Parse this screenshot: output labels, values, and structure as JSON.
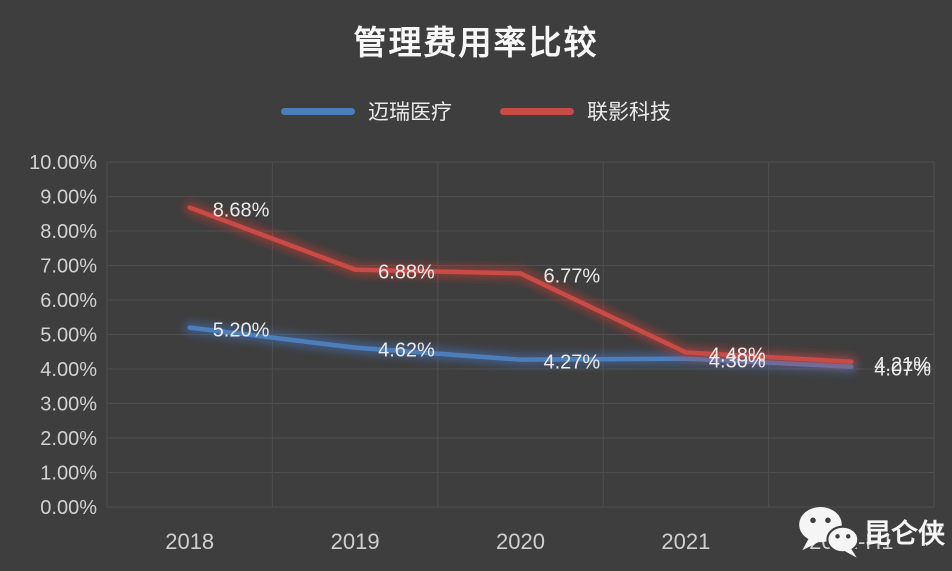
{
  "chart_data": {
    "type": "line",
    "title": "管理费用率比较",
    "categories": [
      "2018",
      "2019",
      "2020",
      "2021",
      "2022-H1"
    ],
    "series": [
      {
        "name": "迈瑞医疗",
        "color": "#4d7ebc",
        "glow_color": "rgba(70,120,200,0.55)",
        "values": [
          5.2,
          4.62,
          4.27,
          4.3,
          4.07
        ],
        "labels": [
          "5.20%",
          "4.62%",
          "4.27%",
          "4.30%",
          "4.07%"
        ]
      },
      {
        "name": "联影科技",
        "color": "#c94b46",
        "glow_color": "rgba(210,60,50,0.55)",
        "values": [
          8.68,
          6.88,
          6.77,
          4.48,
          4.21
        ],
        "labels": [
          "8.68%",
          "6.88%",
          "6.77%",
          "4.48%",
          "4.21%"
        ]
      }
    ],
    "xlabel": "",
    "ylabel": "",
    "ylim": [
      0,
      10
    ],
    "yticks": [
      "0.00%",
      "1.00%",
      "2.00%",
      "3.00%",
      "4.00%",
      "5.00%",
      "6.00%",
      "7.00%",
      "8.00%",
      "9.00%",
      "10.00%"
    ],
    "grid": true,
    "legend_position": "top",
    "colors": {
      "background": "#3e3e3e",
      "gridline": "#4f4f4f",
      "axis_text": "#d2d2d2",
      "xaxis_text": "#cfcfcf",
      "point_label": "#eaeaea",
      "title_text": "#f7f7f7"
    }
  },
  "watermark": {
    "icon": "wechat-icon",
    "text": "昆仑侠"
  }
}
